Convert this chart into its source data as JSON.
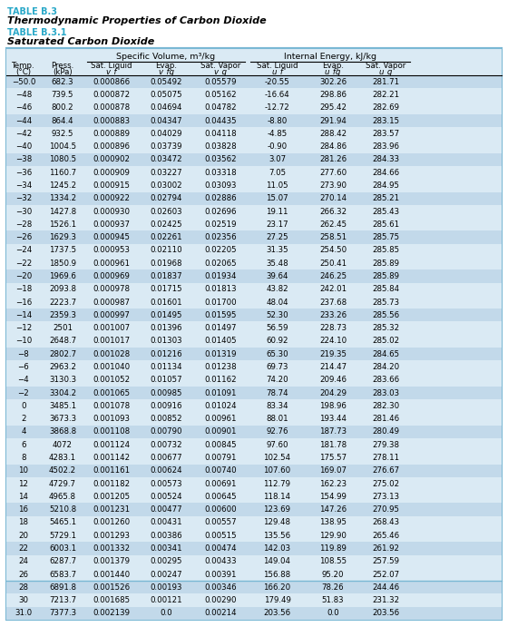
{
  "title1": "TABLE B.3",
  "title2": "Thermodynamic Properties of Carbon Dioxide",
  "title3": "TABLE B.3.1",
  "title4": "Saturated Carbon Dioxide",
  "header1": "Specific Volume, m³/kg",
  "header2": "Internal Energy, kJ/kg",
  "title_color": "#29a8c8",
  "table_bg_light": "#daeaf4",
  "table_bg_dark": "#c2d9ea",
  "border_color": "#7ab8d4",
  "rows": [
    [
      -50.0,
      682.3,
      "0.000866",
      "0.05492",
      "0.05579",
      "-20.55",
      "302.26",
      "281.71"
    ],
    [
      -48,
      739.5,
      "0.000872",
      "0.05075",
      "0.05162",
      "-16.64",
      "298.86",
      "282.21"
    ],
    [
      -46,
      800.2,
      "0.000878",
      "0.04694",
      "0.04782",
      "-12.72",
      "295.42",
      "282.69"
    ],
    [
      -44,
      864.4,
      "0.000883",
      "0.04347",
      "0.04435",
      "-8.80",
      "291.94",
      "283.15"
    ],
    [
      -42,
      932.5,
      "0.000889",
      "0.04029",
      "0.04118",
      "-4.85",
      "288.42",
      "283.57"
    ],
    [
      -40,
      1004.5,
      "0.000896",
      "0.03739",
      "0.03828",
      "-0.90",
      "284.86",
      "283.96"
    ],
    [
      -38,
      1080.5,
      "0.000902",
      "0.03472",
      "0.03562",
      "3.07",
      "281.26",
      "284.33"
    ],
    [
      -36,
      1160.7,
      "0.000909",
      "0.03227",
      "0.03318",
      "7.05",
      "277.60",
      "284.66"
    ],
    [
      -34,
      1245.2,
      "0.000915",
      "0.03002",
      "0.03093",
      "11.05",
      "273.90",
      "284.95"
    ],
    [
      -32,
      1334.2,
      "0.000922",
      "0.02794",
      "0.02886",
      "15.07",
      "270.14",
      "285.21"
    ],
    [
      -30,
      1427.8,
      "0.000930",
      "0.02603",
      "0.02696",
      "19.11",
      "266.32",
      "285.43"
    ],
    [
      -28,
      1526.1,
      "0.000937",
      "0.02425",
      "0.02519",
      "23.17",
      "262.45",
      "285.61"
    ],
    [
      -26,
      1629.3,
      "0.000945",
      "0.02261",
      "0.02356",
      "27.25",
      "258.51",
      "285.75"
    ],
    [
      -24,
      1737.5,
      "0.000953",
      "0.02110",
      "0.02205",
      "31.35",
      "254.50",
      "285.85"
    ],
    [
      -22,
      1850.9,
      "0.000961",
      "0.01968",
      "0.02065",
      "35.48",
      "250.41",
      "285.89"
    ],
    [
      -20,
      1969.6,
      "0.000969",
      "0.01837",
      "0.01934",
      "39.64",
      "246.25",
      "285.89"
    ],
    [
      -18,
      2093.8,
      "0.000978",
      "0.01715",
      "0.01813",
      "43.82",
      "242.01",
      "285.84"
    ],
    [
      -16,
      2223.7,
      "0.000987",
      "0.01601",
      "0.01700",
      "48.04",
      "237.68",
      "285.73"
    ],
    [
      -14,
      2359.3,
      "0.000997",
      "0.01495",
      "0.01595",
      "52.30",
      "233.26",
      "285.56"
    ],
    [
      -12,
      2501.0,
      "0.001007",
      "0.01396",
      "0.01497",
      "56.59",
      "228.73",
      "285.32"
    ],
    [
      -10,
      2648.7,
      "0.001017",
      "0.01303",
      "0.01405",
      "60.92",
      "224.10",
      "285.02"
    ],
    [
      -8,
      2802.7,
      "0.001028",
      "0.01216",
      "0.01319",
      "65.30",
      "219.35",
      "284.65"
    ],
    [
      -6,
      2963.2,
      "0.001040",
      "0.01134",
      "0.01238",
      "69.73",
      "214.47",
      "284.20"
    ],
    [
      -4,
      3130.3,
      "0.001052",
      "0.01057",
      "0.01162",
      "74.20",
      "209.46",
      "283.66"
    ],
    [
      -2,
      3304.2,
      "0.001065",
      "0.00985",
      "0.01091",
      "78.74",
      "204.29",
      "283.03"
    ],
    [
      0,
      3485.1,
      "0.001078",
      "0.00916",
      "0.01024",
      "83.34",
      "198.96",
      "282.30"
    ],
    [
      2,
      3673.3,
      "0.001093",
      "0.00852",
      "0.00961",
      "88.01",
      "193.44",
      "281.46"
    ],
    [
      4,
      3868.8,
      "0.001108",
      "0.00790",
      "0.00901",
      "92.76",
      "187.73",
      "280.49"
    ],
    [
      6,
      4072.0,
      "0.001124",
      "0.00732",
      "0.00845",
      "97.60",
      "181.78",
      "279.38"
    ],
    [
      8,
      4283.1,
      "0.001142",
      "0.00677",
      "0.00791",
      "102.54",
      "175.57",
      "278.11"
    ],
    [
      10,
      4502.2,
      "0.001161",
      "0.00624",
      "0.00740",
      "107.60",
      "169.07",
      "276.67"
    ],
    [
      12,
      4729.7,
      "0.001182",
      "0.00573",
      "0.00691",
      "112.79",
      "162.23",
      "275.02"
    ],
    [
      14,
      4965.8,
      "0.001205",
      "0.00524",
      "0.00645",
      "118.14",
      "154.99",
      "273.13"
    ],
    [
      16,
      5210.8,
      "0.001231",
      "0.00477",
      "0.00600",
      "123.69",
      "147.26",
      "270.95"
    ],
    [
      18,
      5465.1,
      "0.001260",
      "0.00431",
      "0.00557",
      "129.48",
      "138.95",
      "268.43"
    ],
    [
      20,
      5729.1,
      "0.001293",
      "0.00386",
      "0.00515",
      "135.56",
      "129.90",
      "265.46"
    ],
    [
      22,
      6003.1,
      "0.001332",
      "0.00341",
      "0.00474",
      "142.03",
      "119.89",
      "261.92"
    ],
    [
      24,
      6287.7,
      "0.001379",
      "0.00295",
      "0.00433",
      "149.04",
      "108.55",
      "257.59"
    ],
    [
      26,
      6583.7,
      "0.001440",
      "0.00247",
      "0.00391",
      "156.88",
      "95.20",
      "252.07"
    ],
    [
      28,
      6891.8,
      "0.001526",
      "0.00193",
      "0.00346",
      "166.20",
      "78.26",
      "244.46"
    ],
    [
      30,
      7213.7,
      "0.001685",
      "0.00121",
      "0.00290",
      "179.49",
      "51.83",
      "231.32"
    ],
    [
      31.0,
      7377.3,
      "0.002139",
      "0.0",
      "0.00214",
      "203.56",
      "0.0",
      "203.56"
    ]
  ],
  "shaded_rows": [
    0,
    3,
    6,
    9,
    12,
    15,
    18,
    21,
    24,
    27,
    30,
    33,
    36,
    39,
    41
  ],
  "separator_after": [
    38
  ]
}
